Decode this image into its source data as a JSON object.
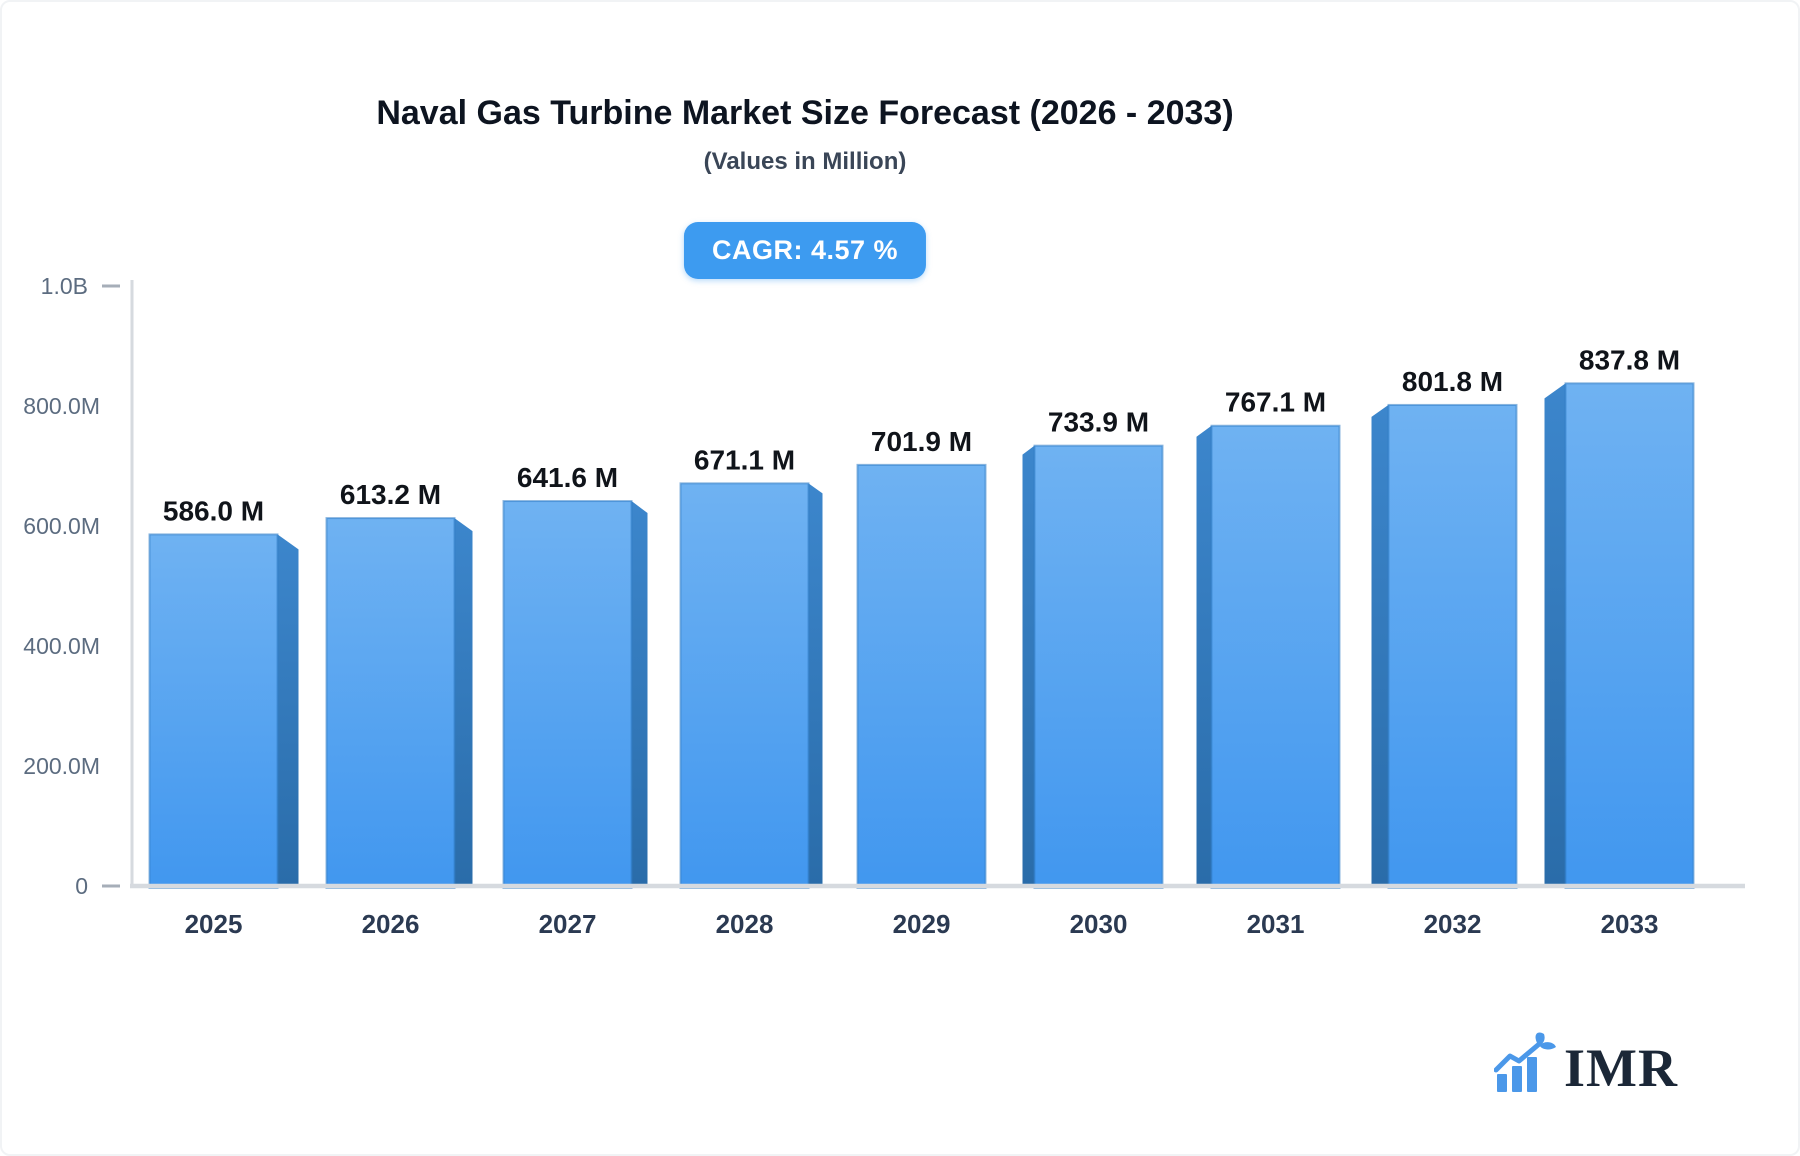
{
  "header": {
    "title": "Naval Gas Turbine Market Size Forecast (2026 - 2033)",
    "subtitle": "(Values in Million)",
    "cagr_badge": "CAGR: 4.57 %"
  },
  "chart_data": {
    "type": "bar",
    "title": "Naval Gas Turbine Market Size Forecast (2026 - 2033)",
    "subtitle": "(Values in Million)",
    "cagr": "4.57 %",
    "categories": [
      "2025",
      "2026",
      "2027",
      "2028",
      "2029",
      "2030",
      "2031",
      "2032",
      "2033"
    ],
    "values": [
      586.0,
      613.2,
      641.6,
      671.1,
      701.9,
      733.9,
      767.1,
      801.8,
      837.8
    ],
    "value_labels": [
      "586.0 M",
      "613.2 M",
      "641.6 M",
      "671.1 M",
      "701.9 M",
      "733.9 M",
      "767.1 M",
      "801.8 M",
      "837.8 M"
    ],
    "value_unit": "M",
    "xlabel": "",
    "ylabel": "",
    "ylim": [
      0,
      1000
    ],
    "y_ticks": [
      {
        "label": "1.0B",
        "value": 1000,
        "tick": true
      },
      {
        "label": "800.0M",
        "value": 800,
        "tick": false
      },
      {
        "label": "600.0M",
        "value": 600,
        "tick": false
      },
      {
        "label": "400.0M",
        "value": 400,
        "tick": false
      },
      {
        "label": "200.0M",
        "value": 200,
        "tick": false
      },
      {
        "label": "0",
        "value": 0,
        "tick": true
      }
    ],
    "grid": false,
    "legend": "none",
    "bar_style": "pseudo-3d, center perspective (left bars show right face, right bars show left face)"
  },
  "branding": {
    "logo_text": "IMR",
    "logo_icon": "growth-bar-chart-with-leaf"
  },
  "colors": {
    "bar_face_top": "#6fb2f2",
    "bar_face_bottom": "#4197ef",
    "bar_face_stroke": "#2f7cc4",
    "bar_side_top": "#3c86cc",
    "bar_side_bottom": "#2a6ca9",
    "badge_bg": "#3d9bf0",
    "badge_text": "#ffffff",
    "title_text": "#0d1420",
    "subtitle_text": "#3a4657",
    "value_label": "#10141a",
    "x_label": "#2b3a52",
    "y_label": "#5c6c80",
    "axis_line": "#d6dadf",
    "tick_mark": "#a6aeb8",
    "logo_blue": "#4b98e9",
    "logo_navy": "#1b2737"
  }
}
